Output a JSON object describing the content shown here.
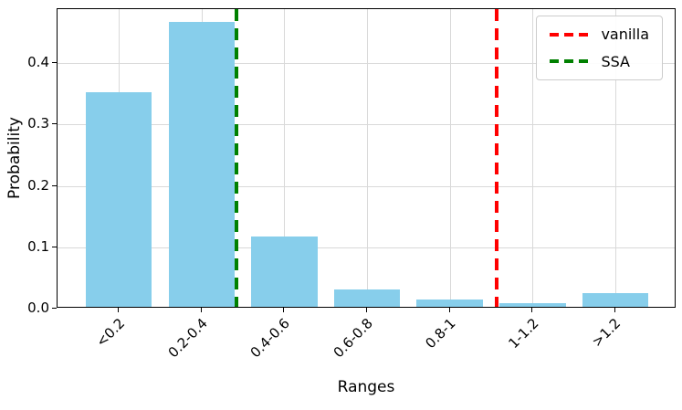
{
  "chart_data": {
    "type": "bar",
    "title": "",
    "xlabel": "Ranges",
    "ylabel": "Probability",
    "categories": [
      "<0.2",
      "0.2-0.4",
      "0.4-0.6",
      "0.6-0.8",
      "0.8-1",
      "1-1.2",
      ">1.2"
    ],
    "values": [
      0.35,
      0.465,
      0.115,
      0.028,
      0.012,
      0.006,
      0.022
    ],
    "bar_color": "#87CEEB",
    "grid": true,
    "xlim": [
      -0.74,
      6.74
    ],
    "ylim": [
      0,
      0.488
    ],
    "yticks": [
      "0.0",
      "0.1",
      "0.2",
      "0.3",
      "0.4"
    ],
    "ytick_values": [
      0,
      0.1,
      0.2,
      0.3,
      0.4
    ],
    "vlines": [
      {
        "label": "vanilla",
        "x": 4.57,
        "color": "#FF0000",
        "style": "dashed"
      },
      {
        "label": "SSA",
        "x": 1.42,
        "color": "#008000",
        "style": "dashed"
      }
    ],
    "legend": {
      "position": "upper right",
      "entries": [
        {
          "label": "vanilla",
          "color": "#FF0000",
          "style": "dashed"
        },
        {
          "label": "SSA",
          "color": "#008000",
          "style": "dashed"
        }
      ]
    }
  }
}
